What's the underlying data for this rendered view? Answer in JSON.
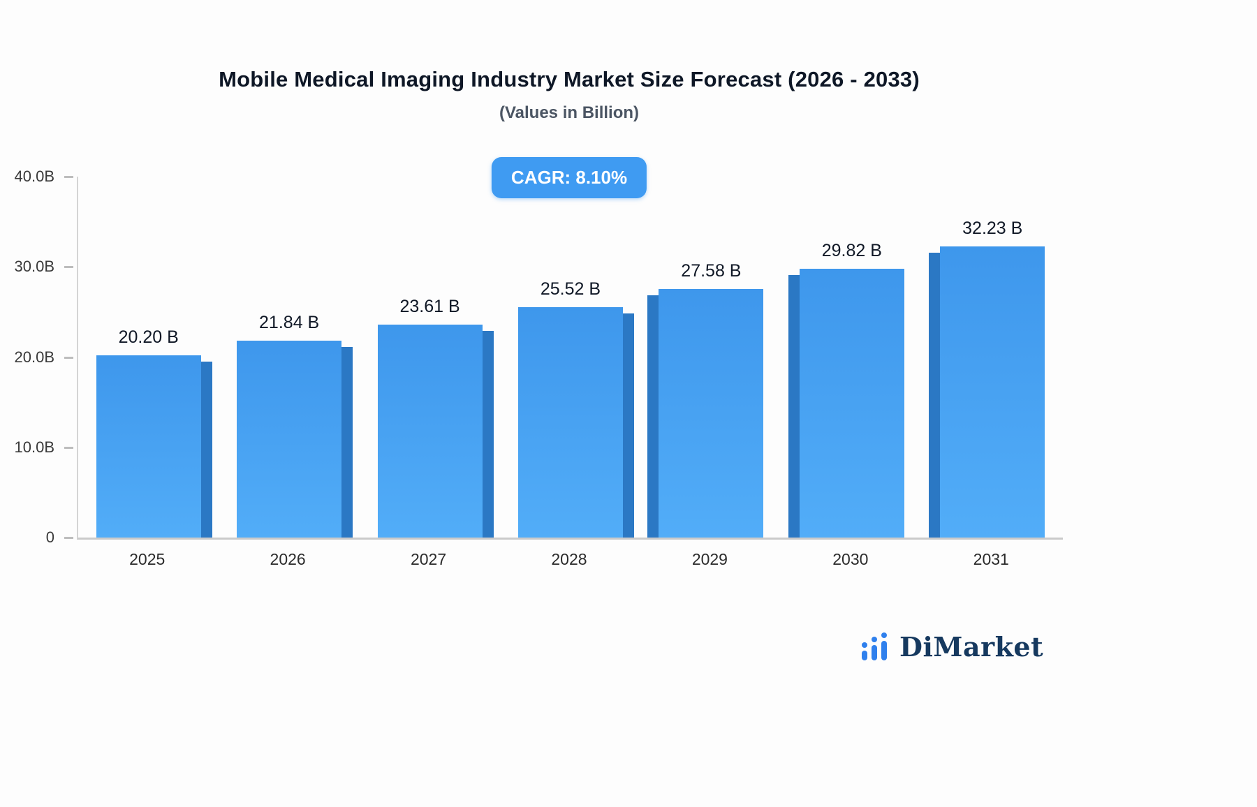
{
  "header": {
    "title": "Mobile Medical Imaging Industry Market Size Forecast (2026 - 2033)",
    "subtitle": "(Values in Billion)",
    "badge_label": "CAGR: 8.10%"
  },
  "logo": {
    "text": "DiMarket",
    "icon": "mini-bar-chart-icon"
  },
  "colors": {
    "bar_face_top": "#3e97ec",
    "bar_face_bottom": "#52adf8",
    "bar_side": "#2b78c4",
    "badge_bg": "#3f9bf2",
    "badge_text": "#ffffff",
    "title_text": "#0e1726",
    "subtitle_text": "#4b5563",
    "logo_text": "#16395f",
    "axis_line": "#d4d4d4"
  },
  "chart_data": {
    "type": "bar",
    "title": "Mobile Medical Imaging Industry Market Size Forecast (2026 - 2033)",
    "subtitle": "(Values in Billion)",
    "categories": [
      "2025",
      "2026",
      "2027",
      "2028",
      "2029",
      "2030",
      "2031"
    ],
    "values": [
      20.2,
      21.84,
      23.61,
      25.52,
      27.58,
      29.82,
      32.23
    ],
    "value_labels": [
      "20.20 B",
      "21.84 B",
      "23.61 B",
      "25.52 B",
      "27.58 B",
      "29.82 B",
      "32.23 B"
    ],
    "xlabel": "",
    "ylabel": "",
    "ylim": [
      0,
      40
    ],
    "yticks": [
      "40.0B",
      "30.0B",
      "20.0B",
      "10.0B",
      "0"
    ],
    "grid": false,
    "legend": false,
    "annotation": "CAGR: 8.10%"
  }
}
